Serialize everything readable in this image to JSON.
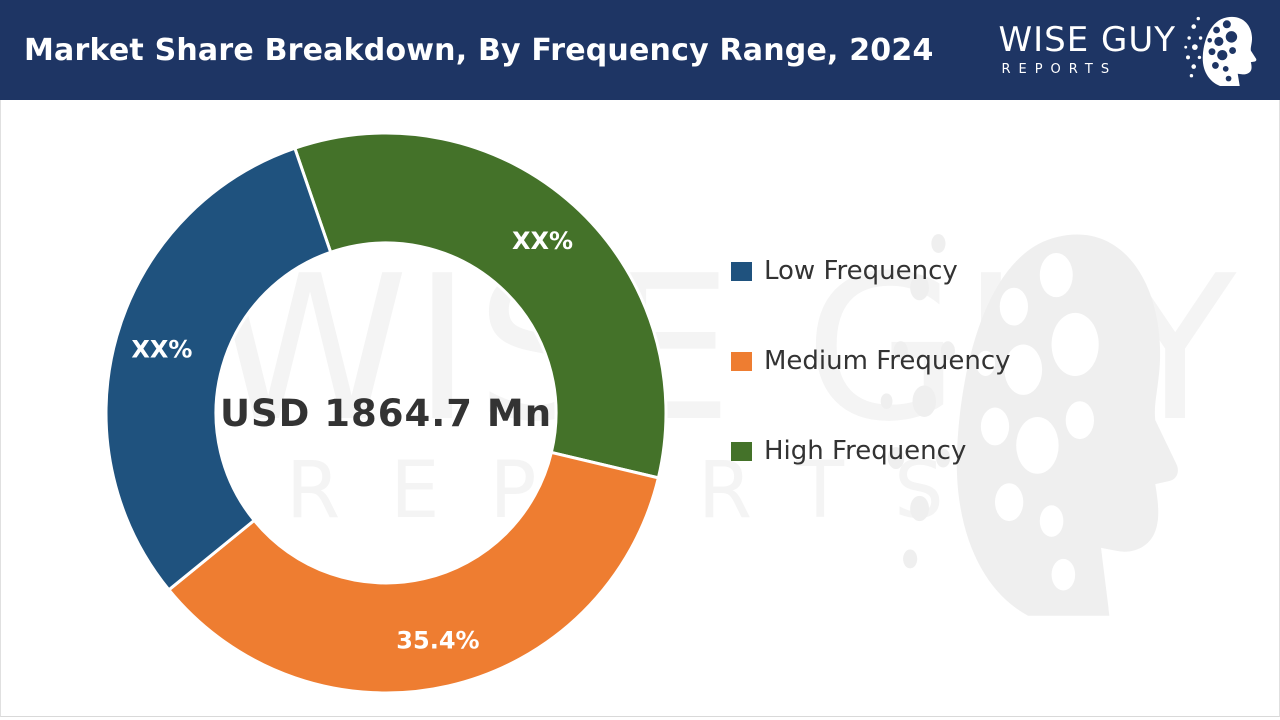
{
  "header": {
    "title": "Market Share Breakdown, By Frequency Range, 2024",
    "logo": {
      "line1": "WISE GUY",
      "line2": "REPORTS"
    }
  },
  "chart_data": {
    "type": "pie",
    "subtype": "donut",
    "title": "Market Share Breakdown, By Frequency Range, 2024",
    "center_label": "USD 1864.7 Mn",
    "start_angle_deg": -19,
    "legend_position": "right",
    "slices": [
      {
        "name": "High Frequency",
        "value_pct": 34.0,
        "label": "XX%",
        "color": "#447229"
      },
      {
        "name": "Medium Frequency",
        "value_pct": 35.4,
        "label": "35.4%",
        "color": "#EE7D31"
      },
      {
        "name": "Low Frequency",
        "value_pct": 30.6,
        "label": "XX%",
        "color": "#1F527E"
      }
    ]
  },
  "legend": {
    "items": [
      {
        "label": "Low Frequency",
        "color": "#1F527E"
      },
      {
        "label": "Medium Frequency",
        "color": "#EE7D31"
      },
      {
        "label": "High Frequency",
        "color": "#447229"
      }
    ]
  },
  "watermark": {
    "line1": "WISE GUY",
    "line2": "REPORTS"
  },
  "colors": {
    "header_bg": "#1E3564",
    "text_dark": "#333333",
    "slice_label_text": "#FFFFFF",
    "watermark_gray": "#F4F4F4",
    "edge_line": "#D9D9D9"
  }
}
